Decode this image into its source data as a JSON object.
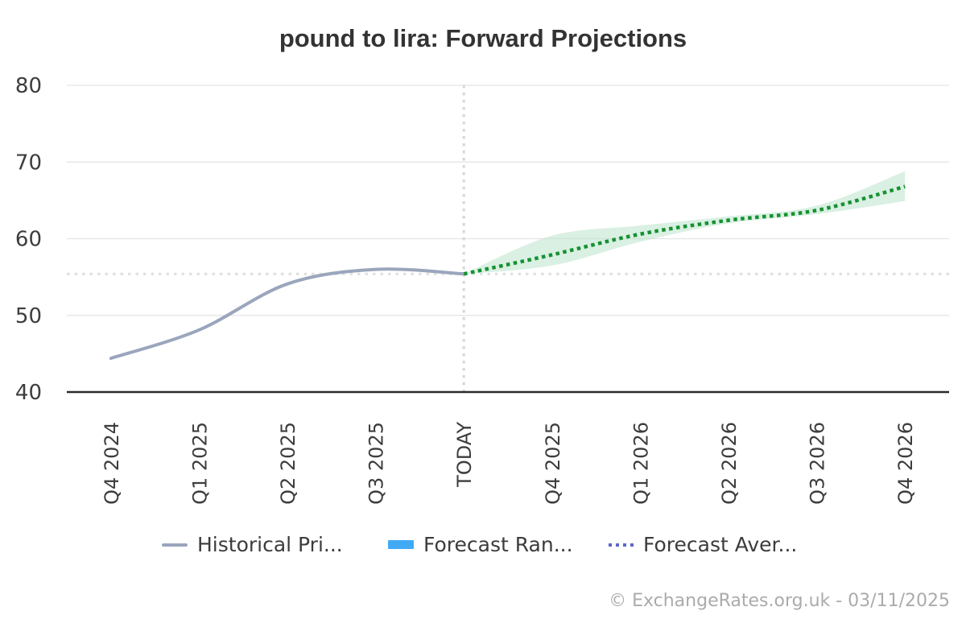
{
  "page": {
    "watermark": "© ExchangeRates.org.uk - 03/11/2025"
  },
  "chart_data": {
    "type": "line",
    "title": "pound to lira: Forward Projections",
    "categories": [
      "Q4 2024",
      "Q1 2025",
      "Q2 2025",
      "Q3 2025",
      "TODAY",
      "Q4 2025",
      "Q1 2026",
      "Q2 2026",
      "Q3 2026",
      "Q4 2026"
    ],
    "xlabel": "",
    "ylabel": "",
    "ylim": [
      40,
      80
    ],
    "yticks": [
      40,
      50,
      60,
      70,
      80
    ],
    "grid": true,
    "legend_position": "bottom",
    "today_index": 4,
    "current_level": 55.4,
    "colors": {
      "historical_line": "#9aa6bc",
      "forecast_average_line": "#179132",
      "forecast_band_fill": "#b4e2c6",
      "legend_range_swatch": "#41aaf5",
      "legend_average_swatch": "#5a68c8",
      "grid_line": "#e4e4e4",
      "axis_line": "#2b2b2b",
      "crosshair_dotted": "#e0e0e0",
      "today_line": "#d8d8d8",
      "tick_label": "#3d3d3d",
      "title_text": "#333333",
      "watermark_text": "#ababab"
    },
    "series": [
      {
        "name": "Historical Price",
        "legend_label": "Historical Pri...",
        "style": "solid-line",
        "color": "#9aa6bc",
        "x_indices": [
          0,
          1,
          2,
          3,
          4
        ],
        "values": [
          44.4,
          48.1,
          54.1,
          56.0,
          55.4
        ]
      },
      {
        "name": "Forecast Range",
        "legend_label": "Forecast Ran...",
        "style": "band",
        "color": "#b4e2c6",
        "legend_color": "#41aaf5",
        "x_indices": [
          4,
          5,
          6,
          7,
          8,
          9
        ],
        "low": [
          55.4,
          56.5,
          59.6,
          62.0,
          63.2,
          64.9
        ],
        "high": [
          55.4,
          60.4,
          61.7,
          62.9,
          64.3,
          68.8
        ]
      },
      {
        "name": "Forecast Average",
        "legend_label": "Forecast Aver...",
        "style": "dotted-line",
        "color": "#179132",
        "legend_color": "#5a68c8",
        "x_indices": [
          4,
          5,
          6,
          7,
          8,
          9
        ],
        "values": [
          55.4,
          57.9,
          60.6,
          62.4,
          63.7,
          66.8
        ]
      }
    ]
  }
}
